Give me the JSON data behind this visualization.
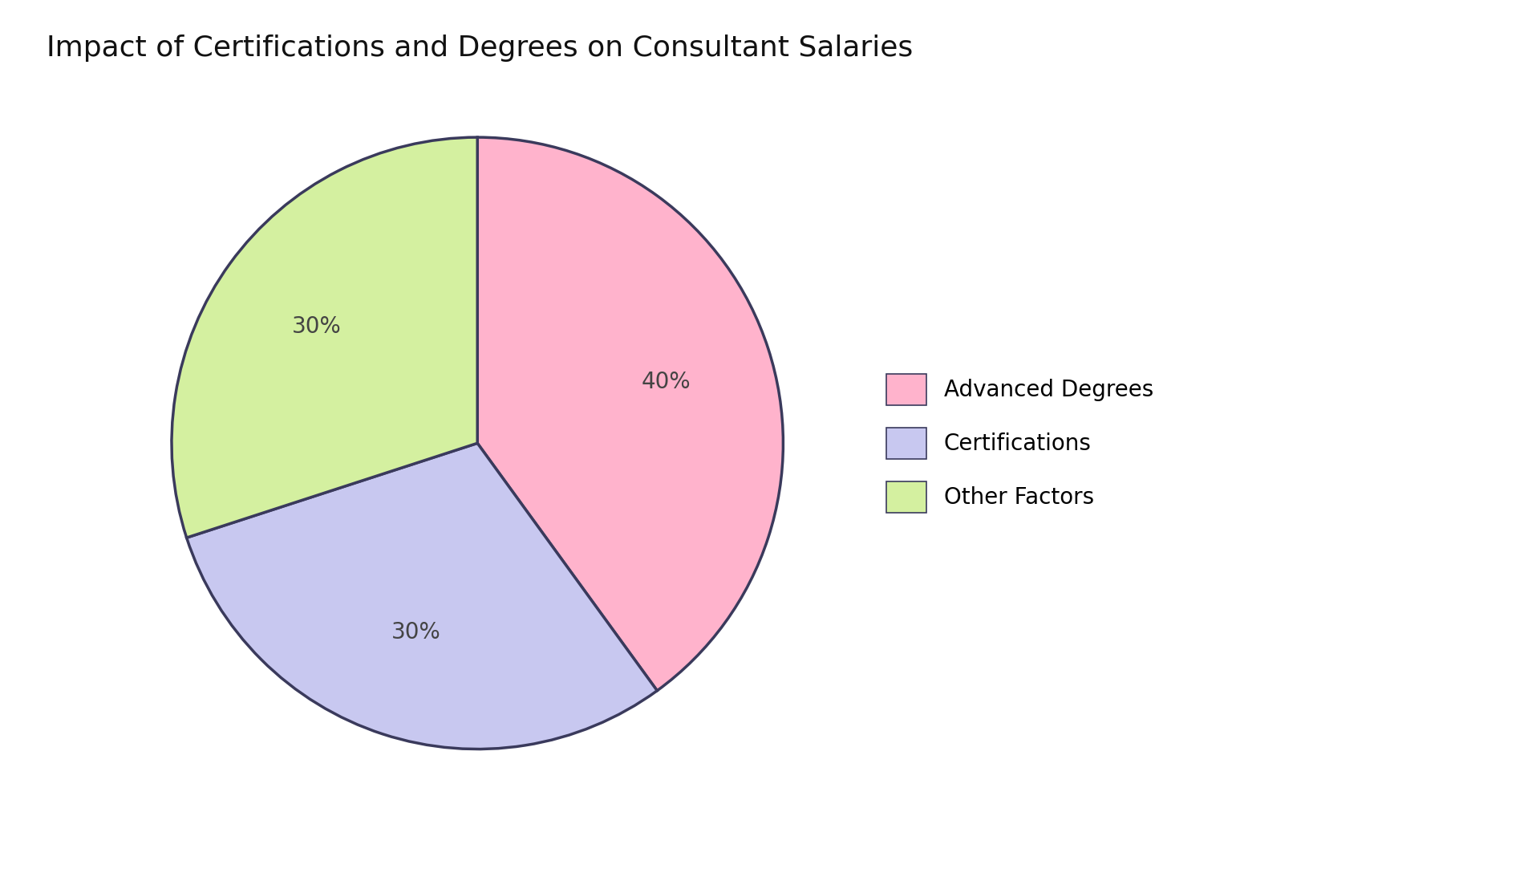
{
  "title": "Impact of Certifications and Degrees on Consultant Salaries",
  "slices": [
    40,
    30,
    30
  ],
  "labels": [
    "Advanced Degrees",
    "Certifications",
    "Other Factors"
  ],
  "colors": [
    "#FFB3CC",
    "#C8C8F0",
    "#D4F0A0"
  ],
  "edge_color": "#3A3A5C",
  "edge_width": 2.5,
  "title_fontsize": 26,
  "autopct_fontsize": 20,
  "legend_fontsize": 20,
  "background_color": "#FFFFFF",
  "startangle": 90,
  "pct_color": "#444444"
}
